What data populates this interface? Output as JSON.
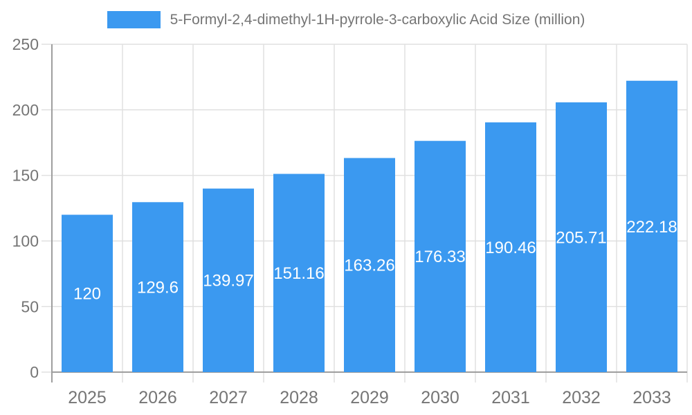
{
  "chart_data": {
    "type": "bar",
    "title": "",
    "legend": {
      "label": "5-Formyl-2,4-dimethyl-1H-pyrrole-3-carboxylic Acid Size (million)",
      "position": "top"
    },
    "categories": [
      "2025",
      "2026",
      "2027",
      "2028",
      "2029",
      "2030",
      "2031",
      "2032",
      "2033"
    ],
    "series": [
      {
        "name": "5-Formyl-2,4-dimethyl-1H-pyrrole-3-carboxylic Acid Size (million)",
        "values": [
          120,
          129.6,
          139.97,
          151.16,
          163.26,
          176.33,
          190.46,
          205.71,
          222.18
        ],
        "labels": [
          "120",
          "129.6",
          "139.97",
          "151.16",
          "163.26",
          "176.33",
          "190.46",
          "205.71",
          "222.18"
        ]
      }
    ],
    "xlabel": "",
    "ylabel": "",
    "ylim": [
      0,
      250
    ],
    "yticks": [
      0,
      50,
      100,
      150,
      200,
      250
    ],
    "grid": true,
    "bar_label_position": "inside-center",
    "colors": {
      "bar": "#3b99f0",
      "bar_label": "#ffffff",
      "axis": "#9e9e9e",
      "grid": "#e0e0e0",
      "tick_text": "#757575",
      "background": "#ffffff"
    }
  }
}
